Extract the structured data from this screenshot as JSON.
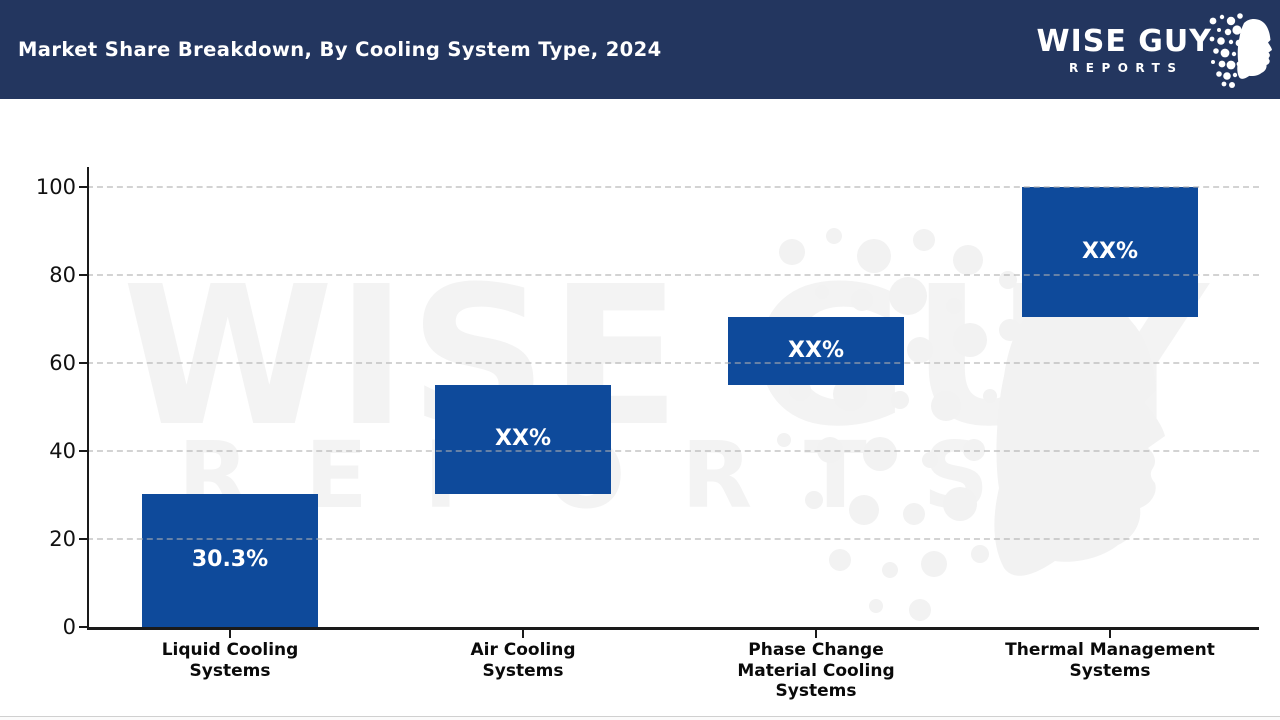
{
  "header": {
    "title": "Market Share Breakdown, By Cooling System Type, 2024",
    "logo": {
      "line1": "WISE GUY",
      "line2": "REPORTS"
    }
  },
  "watermark": {
    "line1": "WISE GUY",
    "line2": "REPORTS"
  },
  "chart_data": {
    "type": "bar",
    "subtype": "waterfall",
    "title": "Market Share Breakdown, By Cooling System Type, 2024",
    "xlabel": "",
    "ylabel": "",
    "grid": true,
    "legend": false,
    "ylim": [
      0,
      104
    ],
    "yticks": [
      0,
      20,
      40,
      60,
      80,
      100
    ],
    "categories": [
      [
        "Liquid Cooling",
        "Systems"
      ],
      [
        "Air Cooling",
        "Systems"
      ],
      [
        "Phase Change",
        "Material Cooling",
        "Systems"
      ],
      [
        "Thermal Management",
        "Systems"
      ]
    ],
    "segments": [
      {
        "start": 0,
        "end": 30.3,
        "increment": 30.3,
        "label": "30.3%"
      },
      {
        "start": 30.3,
        "end": 55,
        "increment": 24.7,
        "label": "XX%"
      },
      {
        "start": 55,
        "end": 70.5,
        "increment": 15.5,
        "label": "XX%"
      },
      {
        "start": 70.5,
        "end": 100,
        "increment": 29.5,
        "label": "XX%"
      }
    ],
    "bar_color": "#0e4a9b",
    "bar_label_color": "#ffffff",
    "header_color": "#23365f",
    "gridline_color": "#d5d5d5"
  }
}
